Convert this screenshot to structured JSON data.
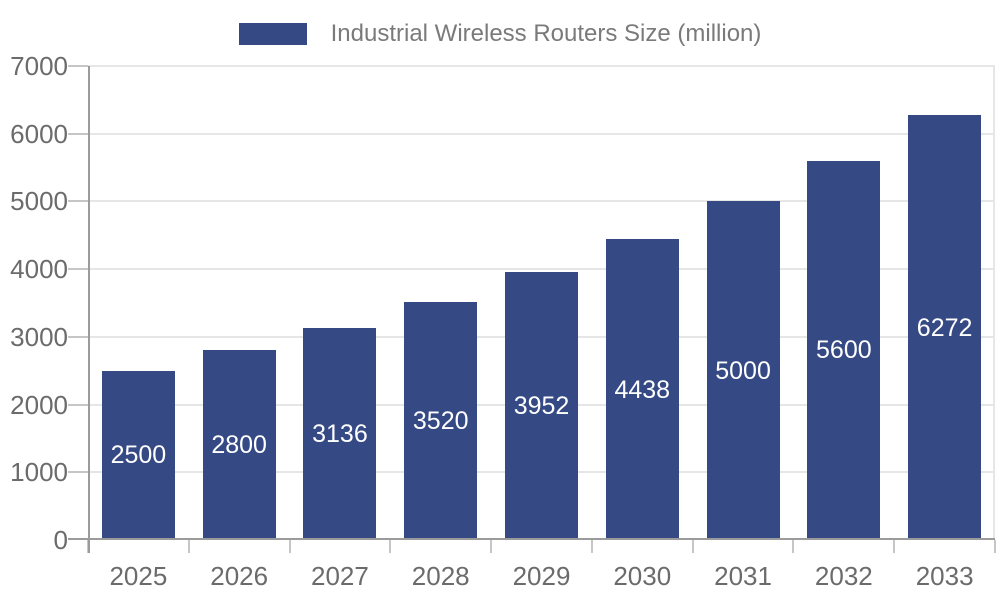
{
  "legend": {
    "label": "Industrial Wireless Routers Size (million)"
  },
  "chart_data": {
    "type": "bar",
    "title": "",
    "legend": [
      "Industrial Wireless Routers Size (million)"
    ],
    "categories": [
      "2025",
      "2026",
      "2027",
      "2028",
      "2029",
      "2030",
      "2031",
      "2032",
      "2033"
    ],
    "values": [
      2500,
      2800,
      3136,
      3520,
      3952,
      4438,
      5000,
      5600,
      6272
    ],
    "xlabel": "",
    "ylabel": "",
    "ylim": [
      0,
      7000
    ],
    "yticks": [
      0,
      1000,
      2000,
      3000,
      4000,
      5000,
      6000,
      7000
    ],
    "grid": true,
    "legend_position": "top-center",
    "bar_label_position": "inside-middle",
    "colors": {
      "bar": "#354984",
      "bar_label": "#ffffff",
      "axis_text": "#6b6b6b",
      "legend_text": "#7a7a7a",
      "grid_line": "#e6e6e6",
      "tick": "#c6c6c6",
      "axis_line": "#9b9b9b",
      "background": "#ffffff"
    }
  }
}
